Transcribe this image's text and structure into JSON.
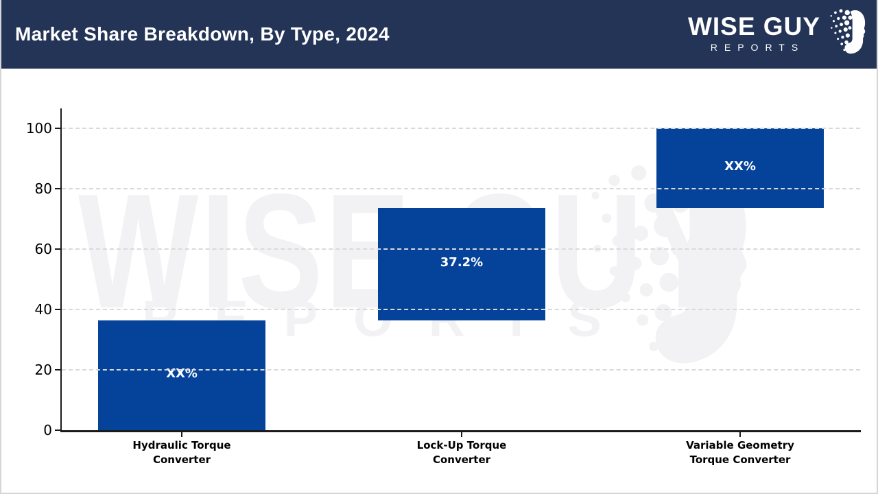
{
  "header": {
    "title": "Market Share Breakdown, By Type, 2024",
    "logo": {
      "line1": "WISE GUY",
      "line2": "REPORTS"
    }
  },
  "watermark": {
    "line1": "WISE GUY",
    "line2": "REPORTS"
  },
  "colors": {
    "header_bg": "#233457",
    "bar": "#05439b",
    "bar_label_text": "#ffffff",
    "title_text": "#ffffff",
    "watermark": "#f2f2f4",
    "axis": "#1a1a1a",
    "grid": "#d9d9d9",
    "border": "#d6d6d6"
  },
  "chart_data": {
    "type": "bar",
    "subtype": "floating-waterfall",
    "title": "Market Share Breakdown, By Type, 2024",
    "categories": [
      "Hydraulic Torque Converter",
      "Lock-Up Torque Converter",
      "Variable Geometry Torque Converter"
    ],
    "category_lines": [
      [
        "Hydraulic Torque",
        "Converter"
      ],
      [
        "Lock-Up Torque",
        "Converter"
      ],
      [
        "Variable Geometry",
        "Torque Converter"
      ]
    ],
    "segments": [
      {
        "category": "Hydraulic Torque Converter",
        "label": "XX%",
        "start": 0,
        "end": 36.4
      },
      {
        "category": "Lock-Up Torque Converter",
        "label": "37.2%",
        "value": 37.2,
        "start": 36.4,
        "end": 73.6
      },
      {
        "category": "Variable Geometry Torque Converter",
        "label": "XX%",
        "start": 73.6,
        "end": 100
      }
    ],
    "xlabel": "",
    "ylabel": "",
    "yticks": [
      0,
      20,
      40,
      60,
      80,
      100
    ],
    "ylim": [
      0,
      106
    ],
    "grid": {
      "axis": "y",
      "style": "dashed",
      "drawn_over_bars": true
    },
    "legend": null
  }
}
